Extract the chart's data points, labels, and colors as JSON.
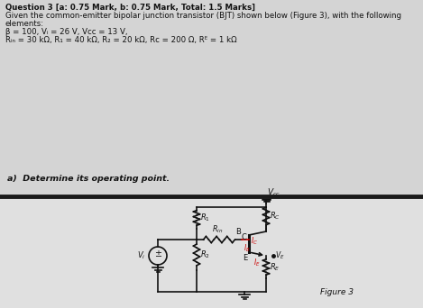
{
  "title_line1_bold": "Question 3 [a: 0.75 Mark, b: 0.75 Mark, Total: 1.5 Marks]",
  "title_line2": "Given the common-emitter bipolar junction transistor (BJT) shown below (Figure 3), with the following",
  "title_line3": "elements:",
  "title_line4": "β = 100, Vᵢ = 26 V, Vᴄᴄ = 13 V,",
  "title_line5": "Rᵢₙ = 30 kΩ, R₁ = 40 kΩ, R₂ = 20 kΩ, Rᴄ = 200 Ω, Rᴱ = 1 kΩ",
  "sub_question": "a)  Determine its operating point.",
  "fig_label": "Figure 3",
  "bg_top": "#d4d4d4",
  "bg_bottom": "#e0e0e0",
  "sep_color": "#1a1a1a",
  "cc": "#111111",
  "red": "#cc0000"
}
